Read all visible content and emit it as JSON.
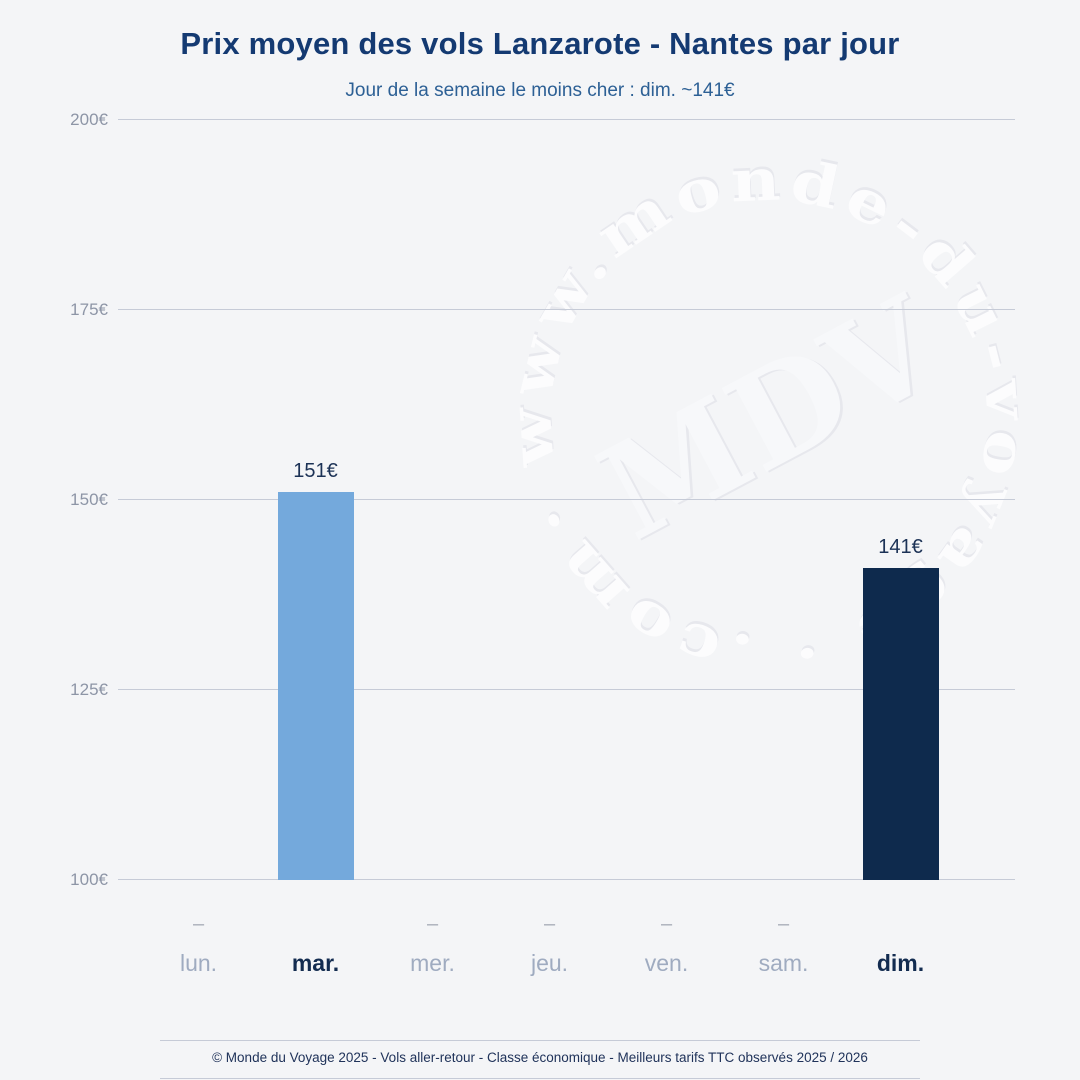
{
  "header": {
    "title": "Prix moyen des vols Lanzarote - Nantes par jour",
    "subtitle": "Jour de la semaine le moins cher : dim. ~141€"
  },
  "watermark": {
    "ring_text": "· www.monde-du-voyage · .com",
    "center_text": "MDV"
  },
  "footer": {
    "text": "© Monde du Voyage 2025 - Vols aller-retour - Classe économique - Meilleurs tarifs TTC observés 2025 / 2026"
  },
  "chart_data": {
    "type": "bar",
    "title": "Prix moyen des vols Lanzarote - Nantes par jour",
    "subtitle": "Jour de la semaine le moins cher : dim. ~141€",
    "categories": [
      "lun.",
      "mar.",
      "mer.",
      "jeu.",
      "ven.",
      "sam.",
      "dim."
    ],
    "values": [
      null,
      151,
      null,
      null,
      null,
      null,
      141
    ],
    "value_labels": [
      "",
      "151€",
      "",
      "",
      "",
      "",
      "141€"
    ],
    "bar_colors": [
      "",
      "#74a9dc",
      "",
      "",
      "",
      "",
      "#0e2a4d"
    ],
    "highlighted": [
      false,
      true,
      false,
      false,
      false,
      false,
      true
    ],
    "empty_marker": "–",
    "ylim": [
      100,
      200
    ],
    "yticks": [
      100,
      125,
      150,
      175,
      200
    ],
    "ytick_labels": [
      "100€",
      "125€",
      "150€",
      "175€",
      "200€"
    ],
    "currency": "€",
    "grid": true,
    "legend": false
  }
}
